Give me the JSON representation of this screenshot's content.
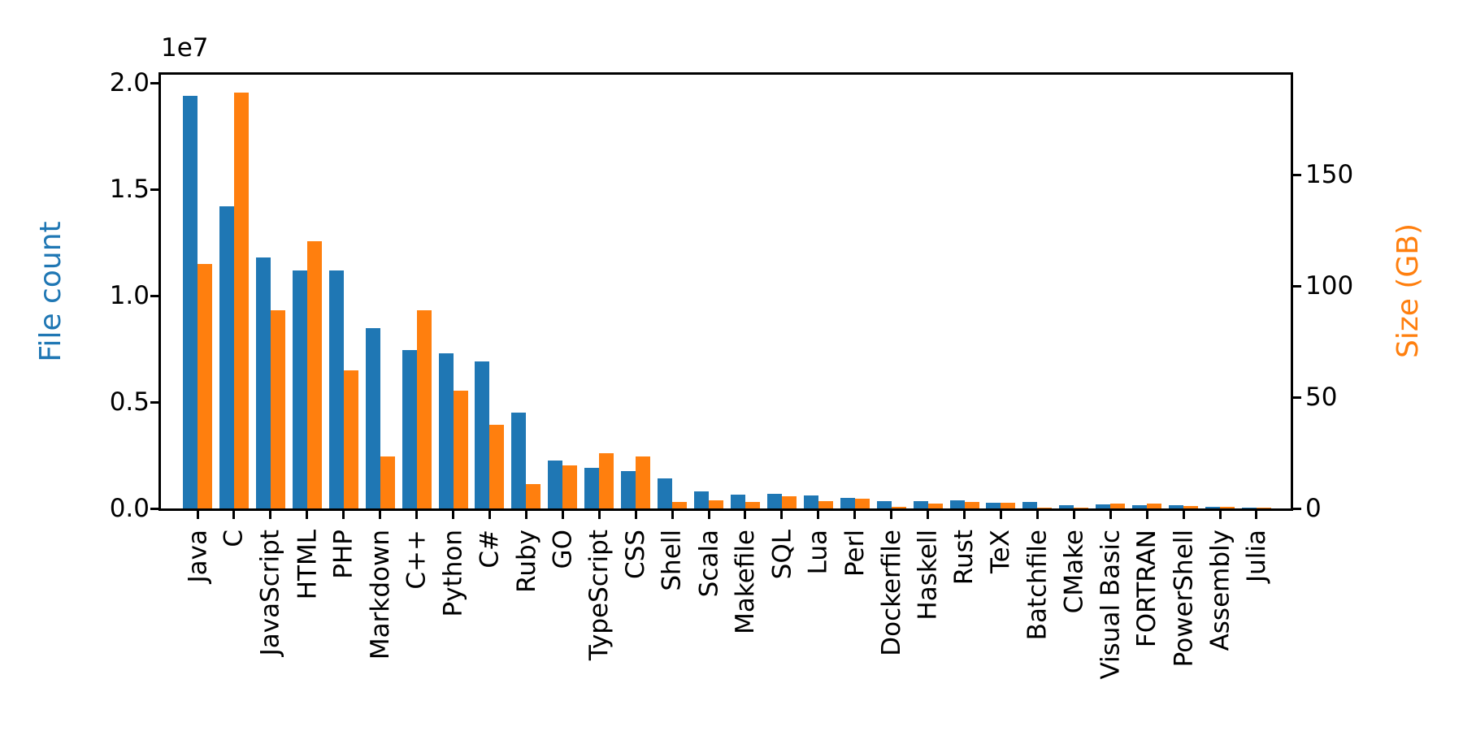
{
  "chart_data": {
    "type": "bar",
    "title": "",
    "categories": [
      "Java",
      "C",
      "JavaScript",
      "HTML",
      "PHP",
      "Markdown",
      "C++",
      "Python",
      "C#",
      "Ruby",
      "GO",
      "TypeScript",
      "CSS",
      "Shell",
      "Scala",
      "Makefile",
      "SQL",
      "Lua",
      "Perl",
      "Dockerfile",
      "Haskell",
      "Rust",
      "TeX",
      "Batchfile",
      "CMake",
      "Visual Basic",
      "FORTRAN",
      "PowerShell",
      "Assembly",
      "Julia"
    ],
    "series": [
      {
        "name": "File count",
        "axis": "left",
        "color": "#1f77b4",
        "values": [
          19400000,
          14200000,
          11800000,
          11200000,
          11200000,
          8500000,
          7450000,
          7300000,
          6900000,
          4500000,
          2250000,
          1900000,
          1750000,
          1400000,
          800000,
          650000,
          680000,
          600000,
          500000,
          350000,
          350000,
          400000,
          280000,
          300000,
          150000,
          200000,
          150000,
          170000,
          90000,
          50000
        ]
      },
      {
        "name": "Size (GB)",
        "axis": "right",
        "color": "#ff7f0e",
        "values": [
          110,
          187,
          89,
          120,
          62,
          23.5,
          89,
          53,
          37.5,
          11,
          19.5,
          25,
          23.5,
          3,
          3.7,
          2.9,
          5.5,
          3.3,
          4.5,
          0.6,
          2.3,
          2.9,
          2.7,
          0.5,
          0.4,
          2.3,
          2.1,
          1.1,
          0.7,
          0.3
        ]
      }
    ],
    "left_axis": {
      "label": "File count",
      "color": "#1f77b4",
      "offset_label": "1e7",
      "tick_labels": [
        "0.0",
        "0.5",
        "1.0",
        "1.5",
        "2.0"
      ],
      "tick_values": [
        0,
        5000000,
        10000000,
        15000000,
        20000000
      ],
      "range": [
        0,
        20400000
      ]
    },
    "right_axis": {
      "label": "Size (GB)",
      "color": "#ff7f0e",
      "tick_labels": [
        "0",
        "50",
        "100",
        "150"
      ],
      "tick_values": [
        0,
        50,
        100,
        150
      ],
      "range": [
        0,
        195
      ]
    },
    "grid": false,
    "legend": null,
    "background": "#ffffff"
  }
}
